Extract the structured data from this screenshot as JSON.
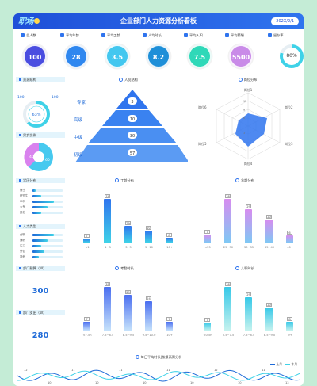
{
  "header": {
    "logo": "职场",
    "title": "企业部门人力资源分析看板",
    "date": "202X/2/1"
  },
  "kpis": [
    {
      "label": "总人数",
      "value": "100",
      "icon": "people-icon",
      "color": "#4a4de0"
    },
    {
      "label": "平均年龄",
      "value": "28",
      "icon": "bar-chart-icon",
      "color": "#2f87ef"
    },
    {
      "label": "平均工龄",
      "value": "3.5",
      "icon": "person-clock-icon",
      "color": "#43c7ef"
    },
    {
      "label": "人均时长",
      "value": "8.2",
      "icon": "person-icon",
      "color": "#1e8fd8"
    },
    {
      "label": "平均入职",
      "value": "7.5",
      "icon": "person-add-icon",
      "color": "#2fd8b8"
    },
    {
      "label": "平均薪酬",
      "value": "5500",
      "icon": "money-icon",
      "color": "#c98be8"
    },
    {
      "label": "留存率",
      "value": "80%",
      "icon": "bars-icon",
      "color": "#3fd2e8"
    }
  ],
  "sections": {
    "resource": "资源结构",
    "structure": "人员结构",
    "ability": "岗位分布",
    "gender": "男女比例",
    "edu": "学历分布",
    "type": "人力类型",
    "salary_title": "工龄分布",
    "age_title": "年龄分布",
    "budget": "部门预算（W）",
    "spend": "部门支出（W）",
    "overtime": "考勤时长",
    "hire": "入职时长",
    "trend": "每日平均时长|按最高周分析"
  },
  "resource_ring": {
    "left": "100",
    "right": "100",
    "center": "63%"
  },
  "pyramid": {
    "levels": [
      "专家",
      "高级",
      "中级",
      "初级"
    ],
    "values": [
      "3",
      "10",
      "30",
      "57"
    ]
  },
  "radar": {
    "axes": [
      "岗位1",
      "岗位2",
      "岗位3",
      "岗位4",
      "岗位5",
      "岗位6"
    ],
    "ticks": [
      "3",
      "6",
      "9",
      "12"
    ]
  },
  "gender_pie": {
    "left": "40",
    "right": "60"
  },
  "edu_rows": [
    {
      "label": "博士",
      "v": 0.1
    },
    {
      "label": "研究生",
      "v": 0.3
    },
    {
      "label": "本科",
      "v": 0.7
    },
    {
      "label": "大专",
      "v": 0.5
    },
    {
      "label": "其他",
      "v": 0.3
    }
  ],
  "type_rows": [
    {
      "label": "全职",
      "v": 0.7
    },
    {
      "label": "兼职",
      "v": 0.5
    },
    {
      "label": "实习",
      "v": 0.3
    },
    {
      "label": "外包",
      "v": 0.4
    },
    {
      "label": "其他",
      "v": 0.2
    }
  ],
  "budget_value": "300",
  "spend_value": "280",
  "charts": {
    "seniority": {
      "categories": [
        "<1",
        "1~3",
        "3~5",
        "5~10",
        "10+"
      ],
      "values": [
        7,
        74,
        29,
        20,
        8
      ]
    },
    "age": {
      "categories": [
        "<25",
        "25~30",
        "30~35",
        "35~40",
        "40+"
      ],
      "values": [
        7,
        38,
        29,
        20,
        6
      ]
    },
    "overtime": {
      "categories": [
        "<7.5h",
        "7.5~8.5",
        "8.5~9.5",
        "9.5~10.0",
        "10+"
      ],
      "values": [
        7,
        35,
        29,
        24,
        7
      ]
    },
    "hire": {
      "categories": [
        "<0.5h",
        "0.5~7.5",
        "7.5~8.5",
        "8.5~9.0",
        "9+"
      ],
      "values": [
        7,
        38,
        29,
        20,
        8
      ]
    }
  },
  "trend": {
    "series": [
      "上月",
      "本月"
    ],
    "labels": [
      "12",
      "10",
      "11",
      "10",
      "11",
      "10",
      "11",
      "10",
      "12",
      "10",
      "11",
      "13"
    ]
  }
}
